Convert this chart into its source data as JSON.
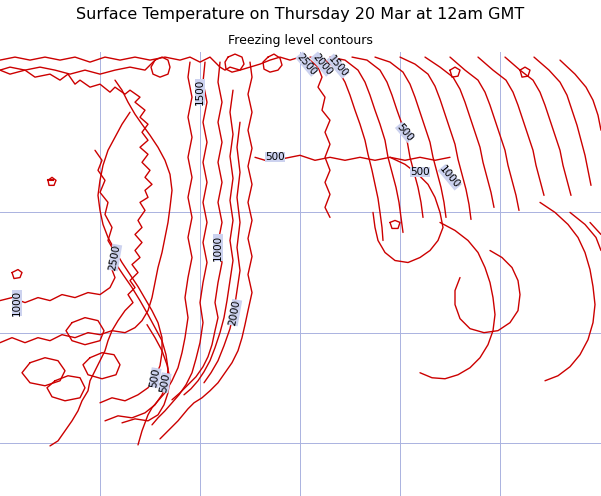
{
  "title": "Surface Temperature on Thursday 20 Mar at 12am GMT",
  "subtitle": "Freezing level contours",
  "bg_color": "#ccd2ef",
  "contour_color": "#cc0000",
  "grid_color": "#aab2e0",
  "white": "#ffffff",
  "title_fontsize": 11.5,
  "subtitle_fontsize": 9
}
